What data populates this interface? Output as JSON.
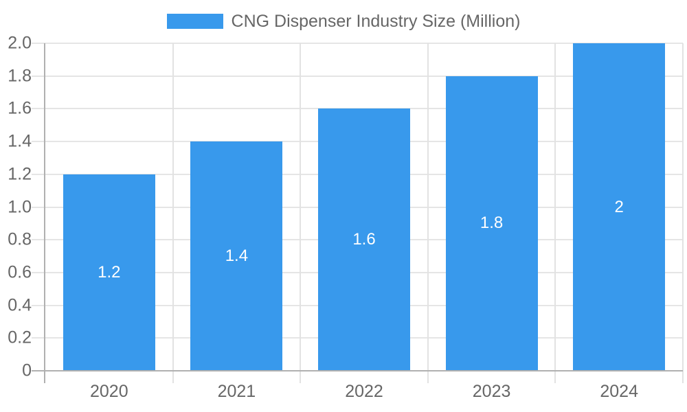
{
  "chart_data": {
    "type": "bar",
    "title": "CNG Dispenser Industry Size (Million)",
    "series_name": "CNG Dispenser Industry Size (Million)",
    "categories": [
      "2020",
      "2021",
      "2022",
      "2023",
      "2024"
    ],
    "values": [
      1.2,
      1.4,
      1.6,
      1.8,
      2
    ],
    "value_labels": [
      "1.2",
      "1.4",
      "1.6",
      "1.8",
      "2"
    ],
    "xlabel": "",
    "ylabel": "",
    "ylim": [
      0,
      2
    ],
    "ytick_step": 0.2,
    "ytick_labels": [
      "0",
      "0.2",
      "0.4",
      "0.6",
      "0.8",
      "1.0",
      "1.2",
      "1.4",
      "1.6",
      "1.8",
      "2.0"
    ],
    "grid": true,
    "legend_position": "top-center",
    "colors": {
      "bar": "#3899EC",
      "bar_label": "#FFFFFF",
      "axis_text": "#666666",
      "legend_text": "#666666",
      "gridline": "#E5E5E5",
      "category_line": "#E2E2E2",
      "axis_line": "#B0B0B0",
      "background": "#FFFFFF"
    }
  }
}
